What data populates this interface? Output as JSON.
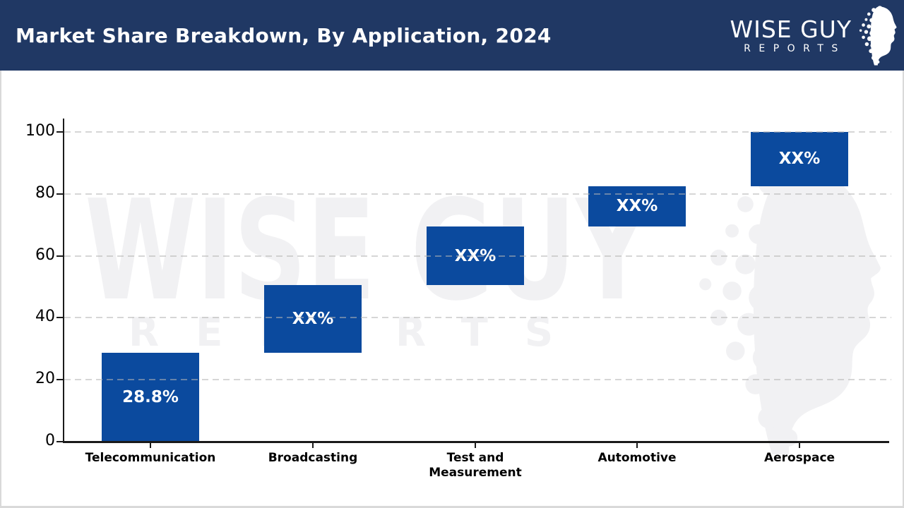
{
  "header": {
    "title": "Market Share Breakdown, By Application, 2024",
    "bg_color": "#203864",
    "logo": {
      "brand_top": "WISE GUY",
      "brand_bottom": "REPORTS"
    }
  },
  "watermark": {
    "line1": "WISE GUY",
    "line2": "REPORTS"
  },
  "chart_data": {
    "type": "bar",
    "subtype": "waterfall",
    "title": "Market Share Breakdown, By Application, 2024",
    "categories": [
      "Telecommunication",
      "Broadcasting",
      "Test and\nMeasurement",
      "Automotive",
      "Aerospace"
    ],
    "segments": [
      {
        "category": "Telecommunication",
        "label": "28.8%",
        "start": 0,
        "end": 28.8
      },
      {
        "category": "Broadcasting",
        "label": "XX%",
        "start": 28.8,
        "end": 50.5
      },
      {
        "category": "Test and Measurement",
        "label": "XX%",
        "start": 50.5,
        "end": 69.5
      },
      {
        "category": "Automotive",
        "label": "XX%",
        "start": 69.5,
        "end": 82.5
      },
      {
        "category": "Aerospace",
        "label": "XX%",
        "start": 82.5,
        "end": 100
      }
    ],
    "yticks": [
      0,
      20,
      40,
      60,
      80,
      100
    ],
    "ylim": [
      0,
      104
    ],
    "grid": "dashed-horizontal",
    "legend": "none",
    "bar_color": "#0b4a9e",
    "bar_label_color": "#ffffff",
    "axis_color": "#1a1a1a"
  }
}
